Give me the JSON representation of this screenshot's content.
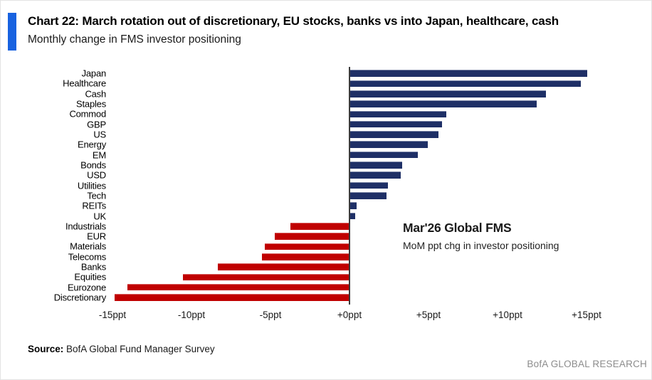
{
  "header": {
    "title": "Chart 22: March rotation out of discretionary, EU stocks, banks vs into Japan, healthcare, cash",
    "subtitle": "Monthly change in FMS investor positioning"
  },
  "chart_data": {
    "type": "bar",
    "orientation": "horizontal",
    "title": "Chart 22: March rotation out of discretionary, EU stocks, banks vs into Japan, healthcare, cash",
    "subtitle": "Monthly change in FMS investor positioning",
    "unit": "ppt",
    "categories": [
      "Japan",
      "Healthcare",
      "Cash",
      "Staples",
      "Commod",
      "GBP",
      "US",
      "Energy",
      "EM",
      "Bonds",
      "USD",
      "Utilities",
      "Tech",
      "REITs",
      "UK",
      "Industrials",
      "EUR",
      "Materials",
      "Telecoms",
      "Banks",
      "Equities",
      "Eurozone",
      "Discretionary"
    ],
    "values": [
      15.0,
      14.6,
      12.4,
      11.8,
      6.1,
      5.8,
      5.6,
      4.9,
      4.3,
      3.3,
      3.2,
      2.4,
      2.3,
      0.4,
      0.3,
      -3.7,
      -4.7,
      -5.3,
      -5.5,
      -8.3,
      -10.5,
      -14.0,
      -14.8
    ],
    "xlim": [
      -15,
      15
    ],
    "x_ticks": [
      "-15ppt",
      "-10ppt",
      "-5ppt",
      "+0ppt",
      "+5ppt",
      "+10ppt",
      "+15ppt"
    ],
    "x_tick_values": [
      -15,
      -10,
      -5,
      0,
      5,
      10,
      15
    ],
    "grid": "off",
    "positive_color": "#1E2F66",
    "negative_color": "#C00000",
    "annotation": {
      "title": "Mar'26 Global FMS",
      "subtitle": "MoM ppt chg in investor positioning"
    }
  },
  "footer": {
    "source_label": "Source:",
    "source_text": " BofA Global Fund Manager Survey",
    "brand": "BofA GLOBAL RESEARCH"
  },
  "colors": {
    "accent": "#1862E0",
    "positive": "#1E2F66",
    "negative": "#C00000",
    "brand_gray": "#8C8C8C"
  }
}
